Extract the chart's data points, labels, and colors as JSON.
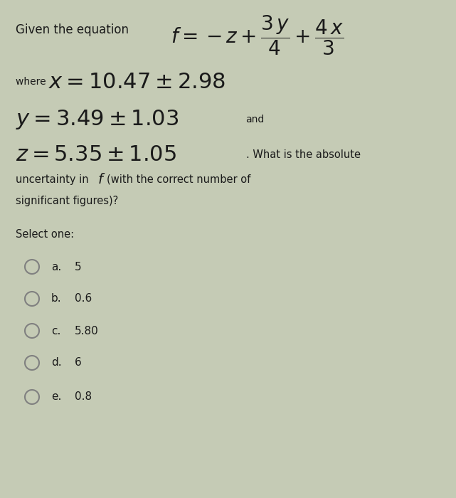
{
  "bg_color": "#c5cbb5",
  "text_color": "#1a1a1a",
  "label_color": "#3a3a3a",
  "circle_color": "#808080",
  "options": [
    {
      "label": "a.",
      "value": "5"
    },
    {
      "label": "b.",
      "value": "0.6"
    },
    {
      "label": "c.",
      "value": "5.80"
    },
    {
      "label": "d.",
      "value": "6"
    },
    {
      "label": "e.",
      "value": "0.8"
    }
  ],
  "fig_width": 6.41,
  "fig_height": 7.0,
  "dpi": 100
}
